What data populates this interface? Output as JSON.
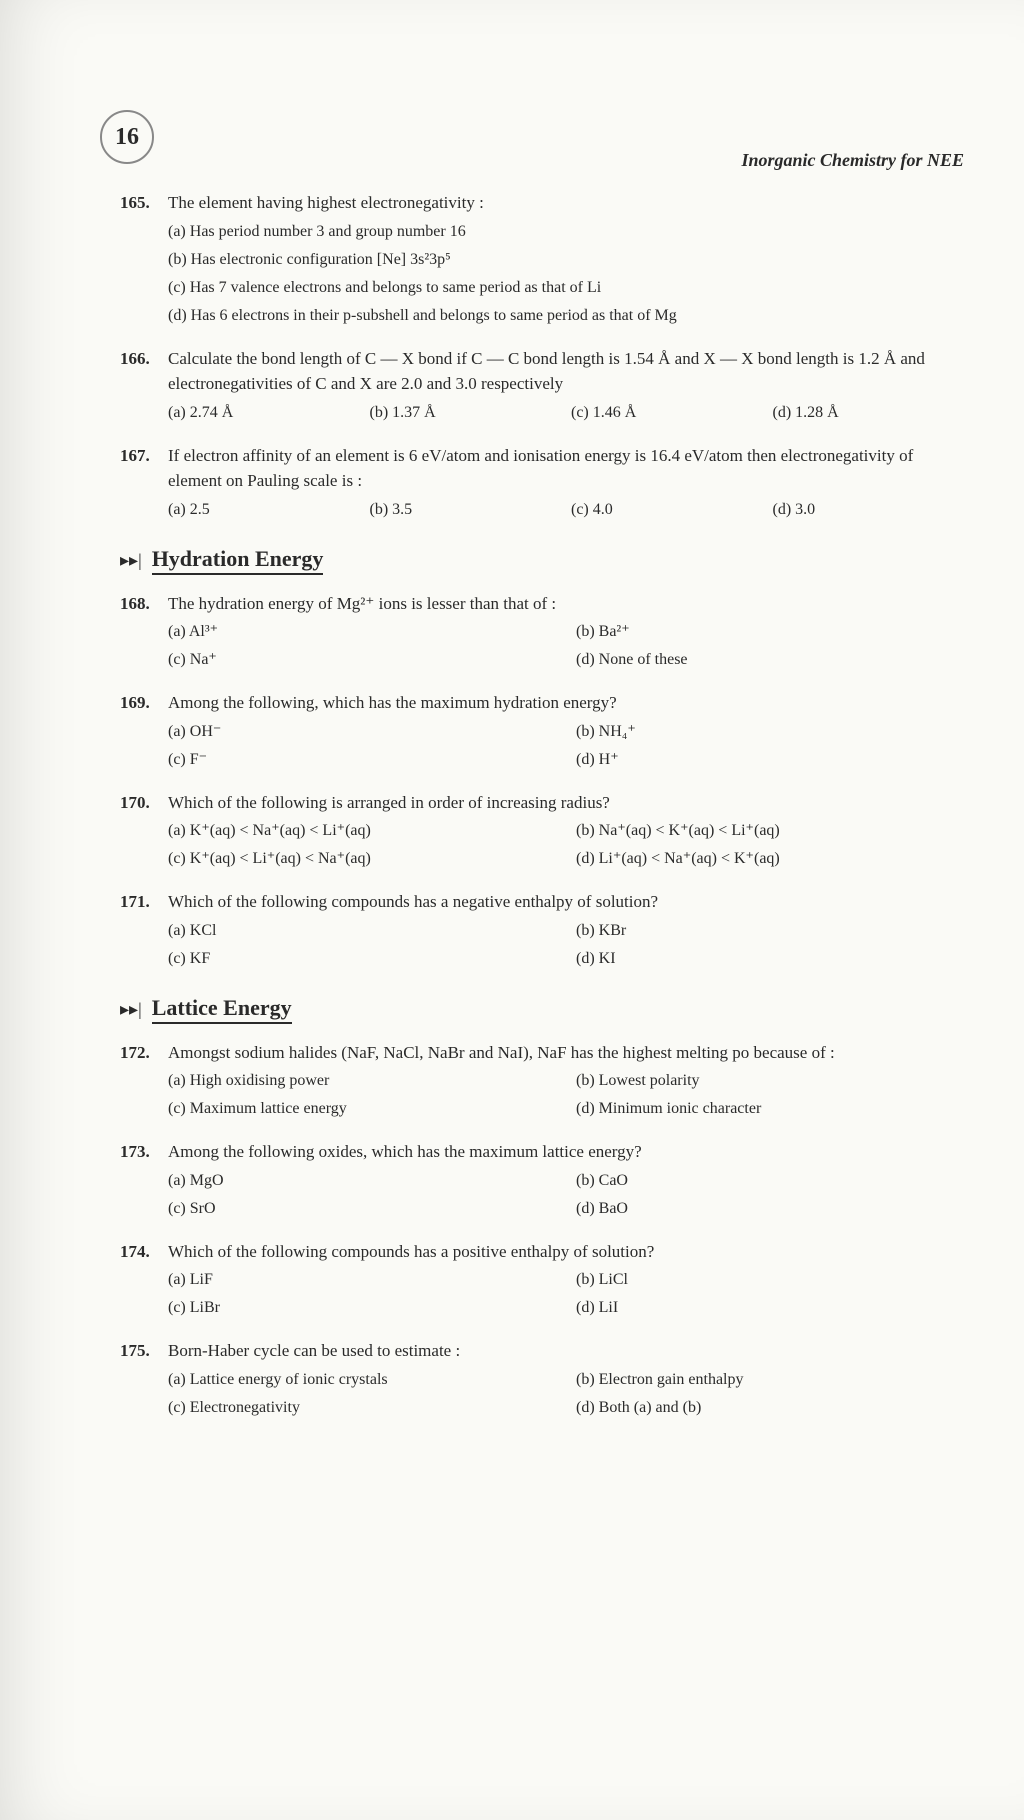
{
  "page": {
    "number": "16",
    "subject": "Inorganic Chemistry for NEE"
  },
  "sections": {
    "hydration": {
      "title": "Hydration Energy"
    },
    "lattice": {
      "title": "Lattice Energy"
    }
  },
  "q165": {
    "num": "165.",
    "text": "The element having highest electronegativity :",
    "a": "(a) Has period number 3 and group number 16",
    "b": "(b) Has electronic configuration [Ne] 3s²3p⁵",
    "c": "(c) Has 7 valence electrons and belongs to same period as that of Li",
    "d": "(d) Has 6 electrons in their p-subshell and belongs to same period as that of Mg"
  },
  "q166": {
    "num": "166.",
    "text": "Calculate the bond length of C — X bond if C — C bond length is 1.54 Å and X — X bond length is 1.2 Å and electronegativities of C and X are 2.0 and 3.0 respectively",
    "a": "(a) 2.74 Å",
    "b": "(b) 1.37 Å",
    "c": "(c) 1.46 Å",
    "d": "(d) 1.28 Å"
  },
  "q167": {
    "num": "167.",
    "text": "If electron affinity of an element is 6 eV/atom and ionisation energy is 16.4 eV/atom then electronegativity of element on Pauling scale is :",
    "a": "(a) 2.5",
    "b": "(b) 3.5",
    "c": "(c) 4.0",
    "d": "(d) 3.0"
  },
  "q168": {
    "num": "168.",
    "text": "The hydration energy of Mg²⁺ ions is lesser than that of :",
    "a": "(a) Al³⁺",
    "b": "(b) Ba²⁺",
    "c": "(c) Na⁺",
    "d": "(d) None of these"
  },
  "q169": {
    "num": "169.",
    "text": "Among the following, which has the maximum hydration energy?",
    "a": "(a) OH⁻",
    "b": "(b) NH₄⁺",
    "c": "(c) F⁻",
    "d": "(d) H⁺"
  },
  "q170": {
    "num": "170.",
    "text": "Which of the following is arranged in order of increasing radius?",
    "a": "(a) K⁺(aq) < Na⁺(aq) < Li⁺(aq)",
    "b": "(b) Na⁺(aq) < K⁺(aq) < Li⁺(aq)",
    "c": "(c) K⁺(aq) < Li⁺(aq) < Na⁺(aq)",
    "d": "(d) Li⁺(aq) < Na⁺(aq) < K⁺(aq)"
  },
  "q171": {
    "num": "171.",
    "text": "Which of the following compounds has a negative enthalpy of solution?",
    "a": "(a) KCl",
    "b": "(b) KBr",
    "c": "(c) KF",
    "d": "(d) KI"
  },
  "q172": {
    "num": "172.",
    "text": "Amongst sodium halides (NaF, NaCl, NaBr and NaI), NaF has the highest melting po because of :",
    "a": "(a) High oxidising power",
    "b": "(b) Lowest polarity",
    "c": "(c) Maximum lattice energy",
    "d": "(d) Minimum ionic character"
  },
  "q173": {
    "num": "173.",
    "text": "Among the following oxides, which has the maximum lattice energy?",
    "a": "(a) MgO",
    "b": "(b) CaO",
    "c": "(c) SrO",
    "d": "(d) BaO"
  },
  "q174": {
    "num": "174.",
    "text": "Which of the following compounds has a positive enthalpy of solution?",
    "a": "(a) LiF",
    "b": "(b) LiCl",
    "c": "(c) LiBr",
    "d": "(d) LiI"
  },
  "q175": {
    "num": "175.",
    "text": "Born-Haber cycle can be used to estimate :",
    "a": "(a) Lattice energy of ionic crystals",
    "b": "(b) Electron gain enthalpy",
    "c": "(c) Electronegativity",
    "d": "(d) Both (a) and (b)"
  }
}
